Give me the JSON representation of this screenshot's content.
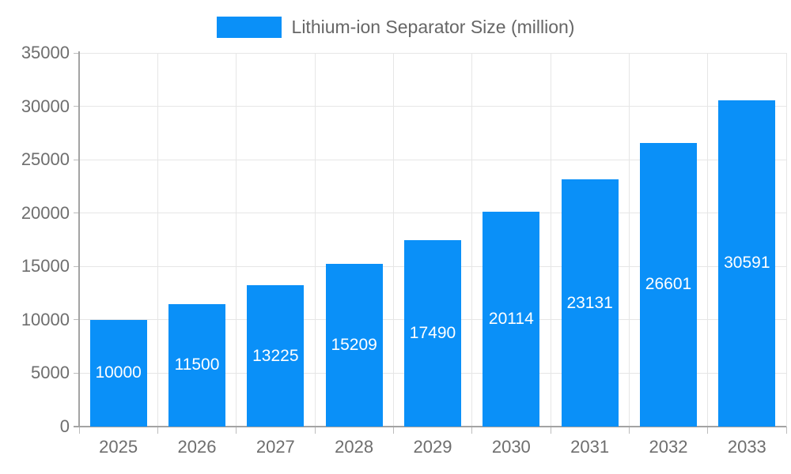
{
  "chart_data": {
    "type": "bar",
    "title": "",
    "legend_label": "Lithium-ion Separator Size (million)",
    "legend_position": "top",
    "categories": [
      "2025",
      "2026",
      "2027",
      "2028",
      "2029",
      "2030",
      "2031",
      "2032",
      "2033"
    ],
    "values": [
      10000,
      11500,
      13225,
      15209,
      17490,
      20114,
      23131,
      26601,
      30591
    ],
    "xlabel": "",
    "ylabel": "",
    "ylim": [
      0,
      35000
    ],
    "ytick_step": 5000,
    "ytick_labels": [
      "0",
      "5000",
      "10000",
      "15000",
      "20000",
      "25000",
      "30000",
      "35000"
    ],
    "grid": true,
    "value_labels_shown": true,
    "colors": {
      "bar": "#0a90f8",
      "value_label_text": "#ffffff",
      "axis_text": "#6e6e6e",
      "legend_text": "#666666",
      "gridline": "#e6e6e6",
      "axis_line": "#a3a3a3",
      "tick_mark": "#bdbdbd",
      "background": "#ffffff"
    }
  }
}
